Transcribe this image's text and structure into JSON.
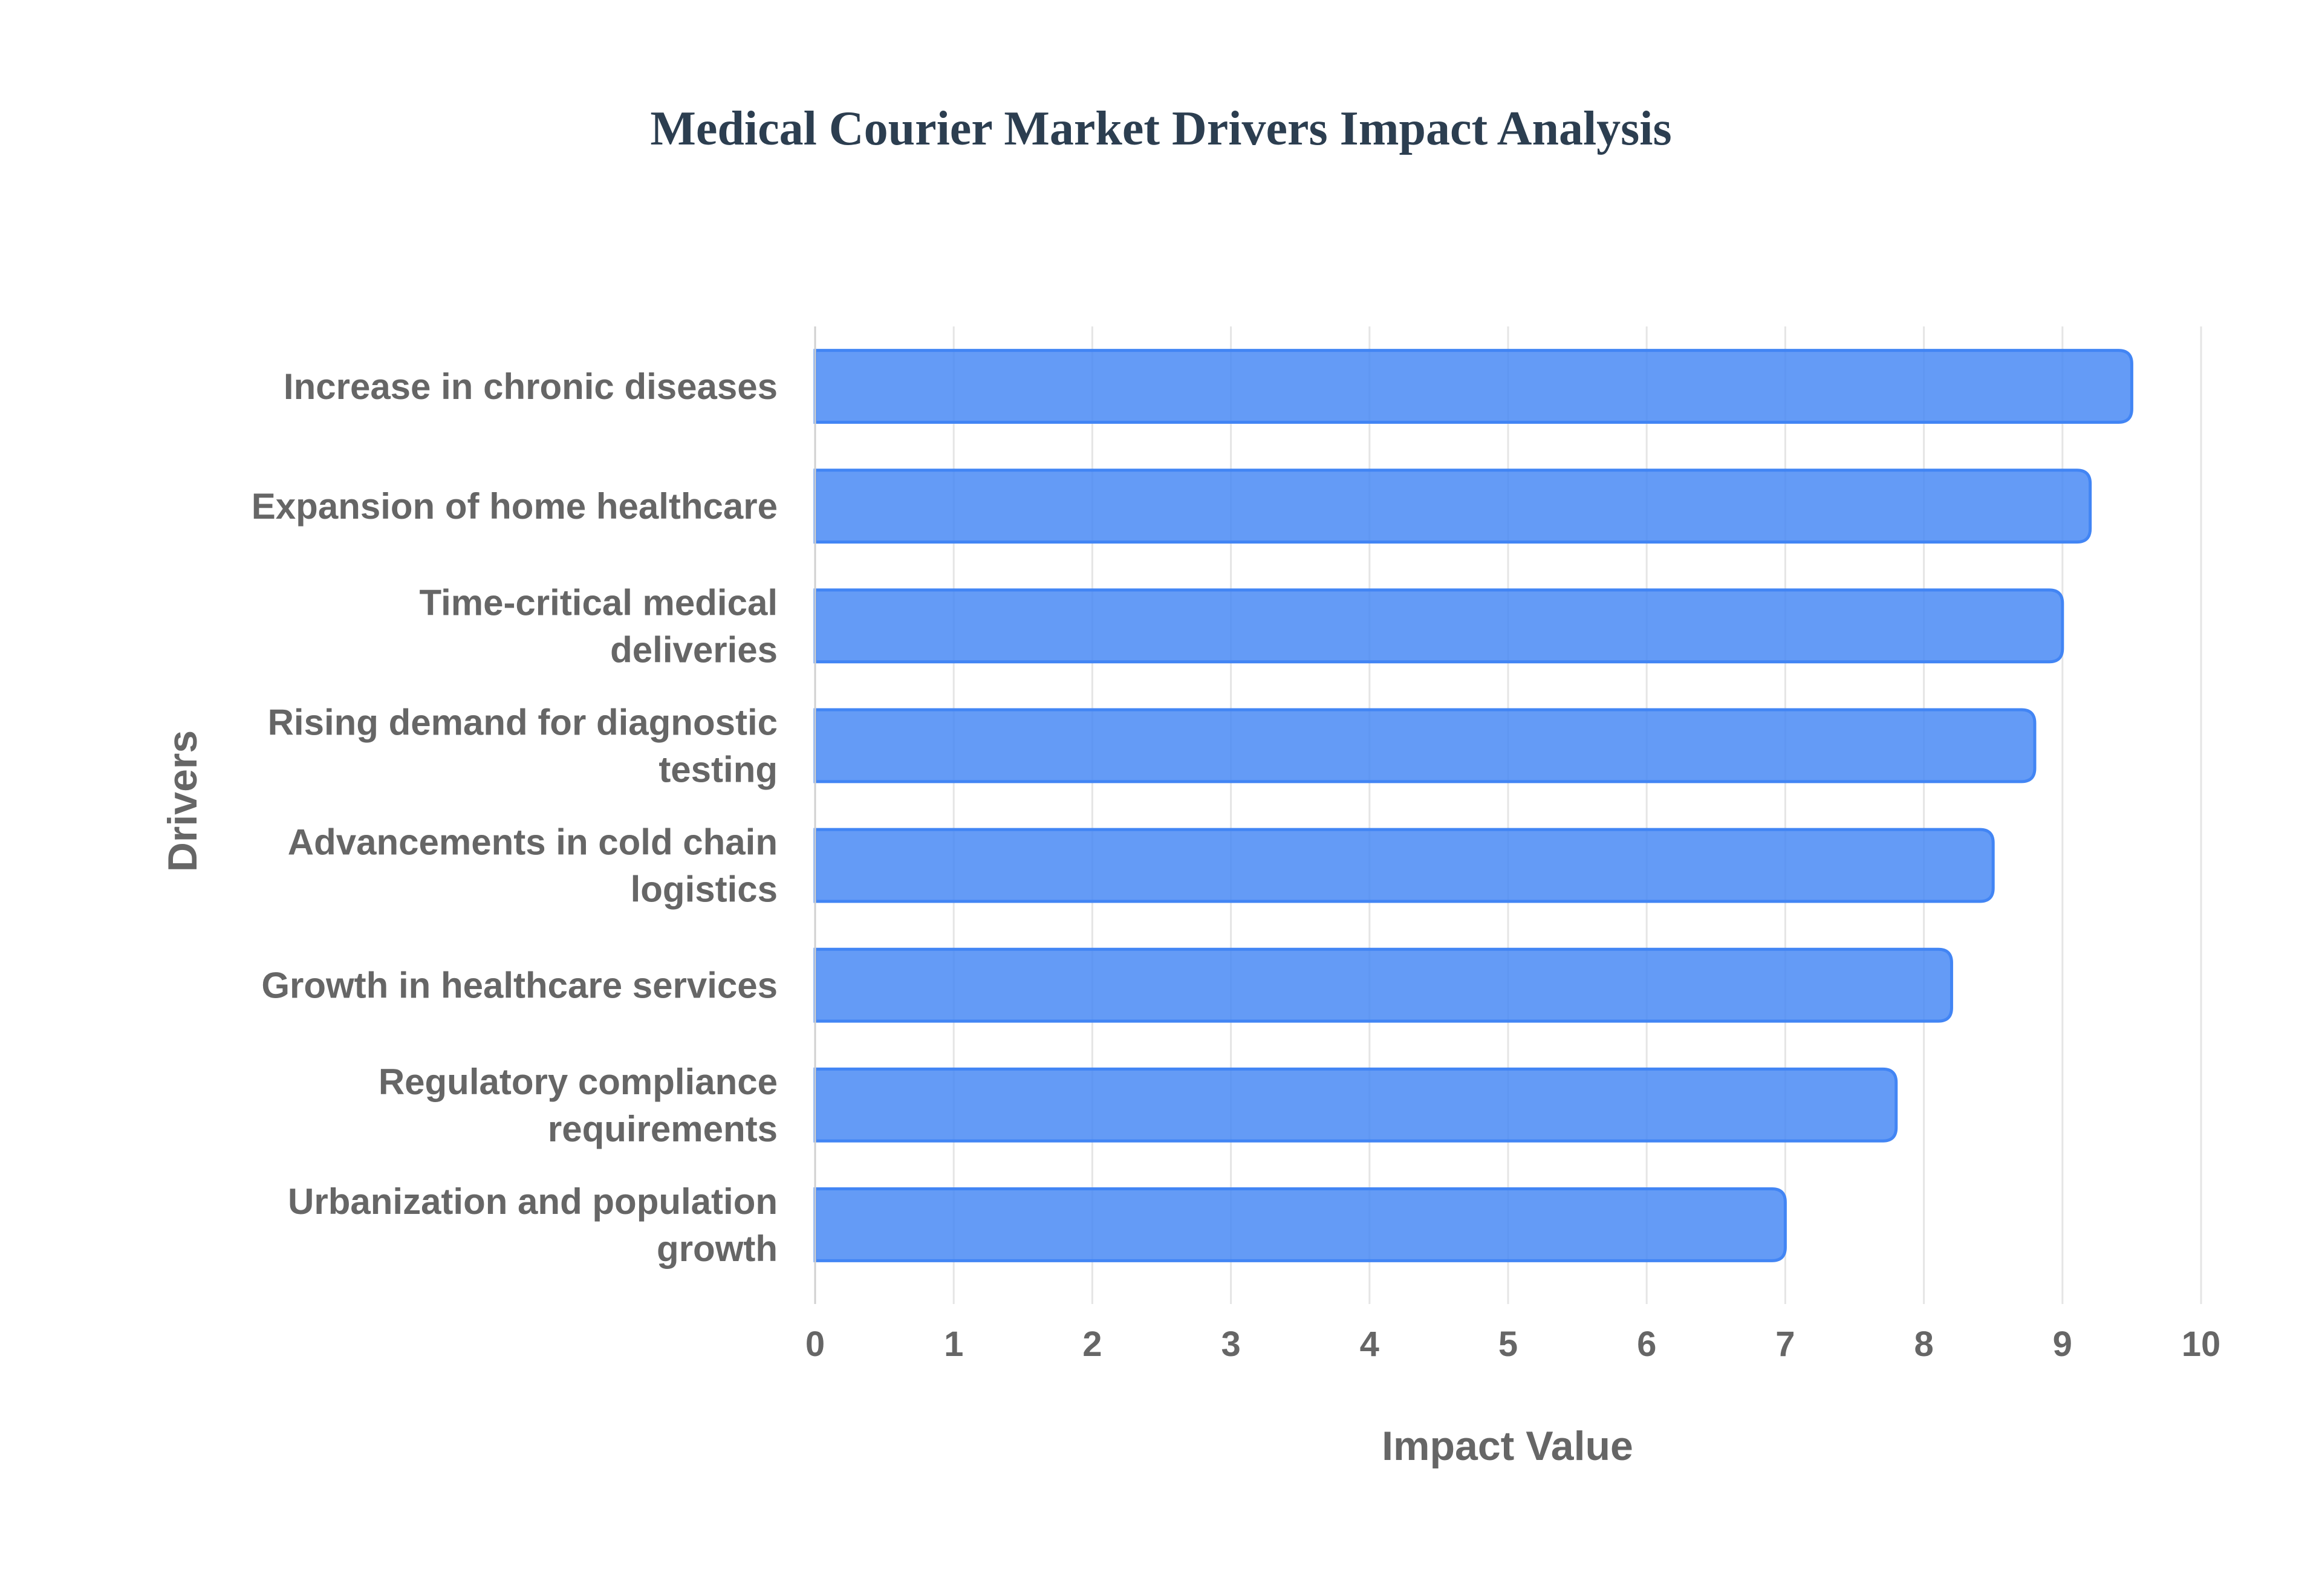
{
  "chart_data": {
    "type": "bar",
    "orientation": "horizontal",
    "title": "Medical Courier Market Drivers Impact Analysis",
    "xlabel": "Impact Value",
    "ylabel": "Drivers",
    "xlim": [
      0,
      10
    ],
    "xticks": [
      0,
      1,
      2,
      3,
      4,
      5,
      6,
      7,
      8,
      9,
      10
    ],
    "grid": true,
    "legend": "none",
    "bar_color": "#4285f4",
    "categories": [
      [
        "Increase in chronic diseases"
      ],
      [
        "Expansion of home healthcare"
      ],
      [
        "Time-critical medical",
        "deliveries"
      ],
      [
        "Rising demand for diagnostic",
        "testing"
      ],
      [
        "Advancements in cold chain",
        "logistics"
      ],
      [
        "Growth in healthcare services"
      ],
      [
        "Regulatory compliance",
        "requirements"
      ],
      [
        "Urbanization and population",
        "growth"
      ]
    ],
    "values": [
      9.5,
      9.2,
      9.0,
      8.8,
      8.5,
      8.2,
      7.8,
      7.0
    ]
  }
}
